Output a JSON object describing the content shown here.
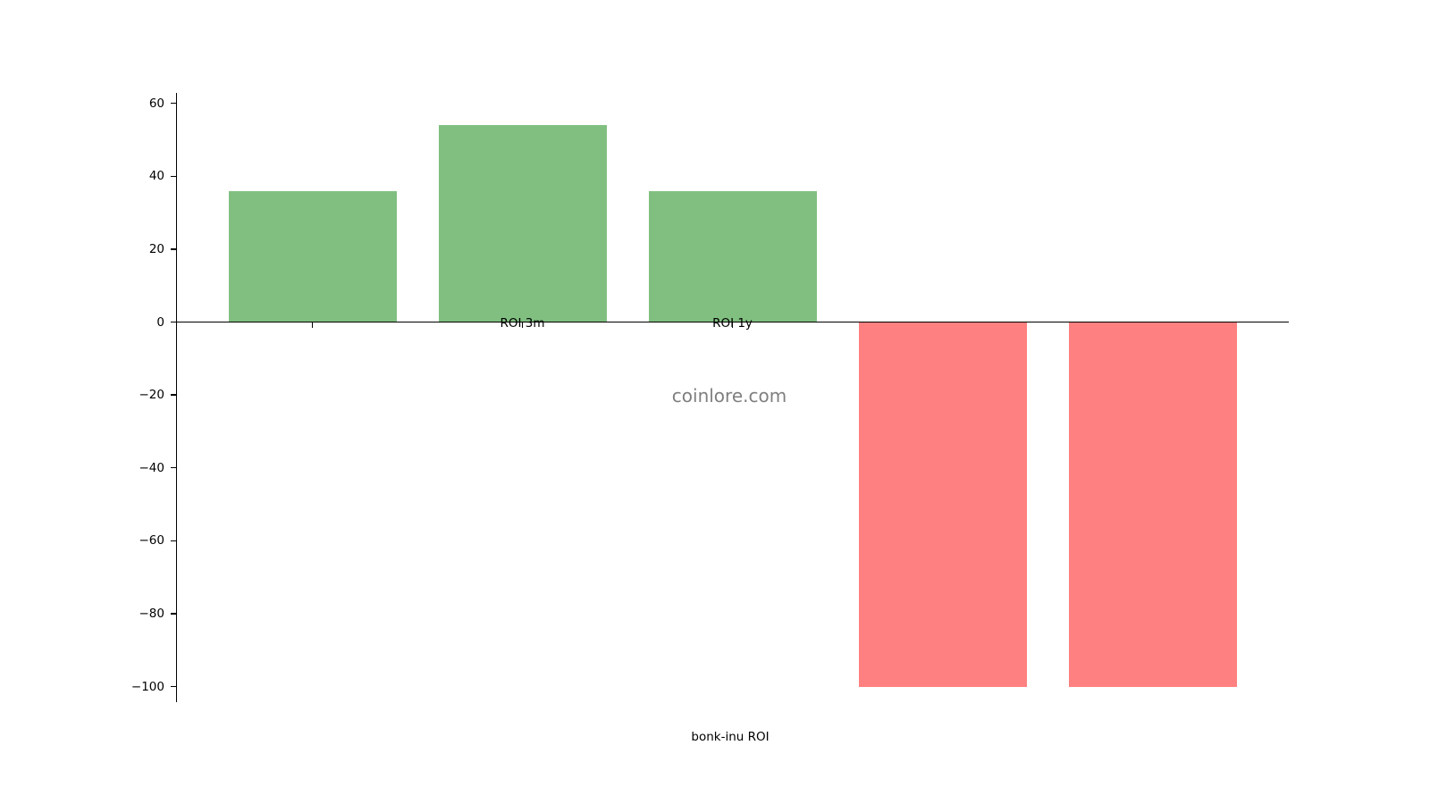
{
  "chart_data": {
    "type": "bar",
    "title": "",
    "xlabel": "bonk-inu ROI",
    "ylabel": "",
    "categories": [
      "",
      "ROI 3m",
      "ROI 1y",
      "",
      ""
    ],
    "values": [
      36,
      54,
      36,
      -100,
      -100
    ],
    "series": [
      {
        "name": "ROI",
        "values": [
          36,
          54,
          36,
          -100,
          -100
        ]
      }
    ],
    "x_tick_shown": [
      true,
      true,
      true,
      false,
      false
    ],
    "y_ticks": [
      60,
      40,
      20,
      0,
      -20,
      -40,
      -60,
      -80,
      -100
    ],
    "ylim": [
      -104,
      62
    ],
    "grid": false,
    "legend_position": "none",
    "positive_color": "#80BF80",
    "negative_color": "#FF8080",
    "axis_color": "#000000",
    "tick_label_color": "#000000",
    "background_color": "#FFFFFF"
  },
  "watermark": {
    "text": "coinlore.com",
    "color": "#7F7F7F"
  }
}
